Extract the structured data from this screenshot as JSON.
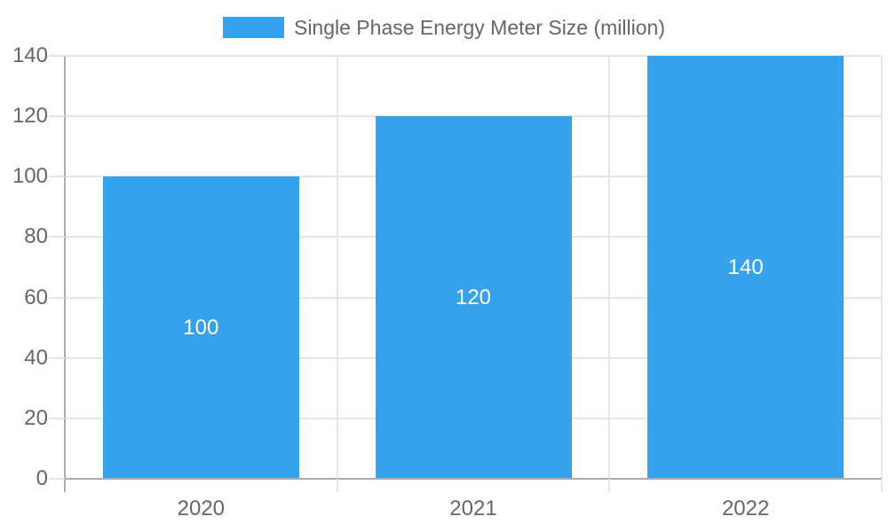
{
  "legend": {
    "label": "Single Phase Energy Meter Size (million)"
  },
  "chart_data": {
    "type": "bar",
    "title": "Single Phase Energy Meter Size (million)",
    "series": [
      {
        "name": "Single Phase Energy Meter Size (million)",
        "values": [
          100,
          120,
          140
        ]
      }
    ],
    "categories": [
      "2020",
      "2021",
      "2022"
    ],
    "data_labels": [
      "100",
      "120",
      "140"
    ],
    "xlabel": "",
    "ylabel": "",
    "ylim": [
      0,
      140
    ],
    "yticks": [
      0,
      20,
      40,
      60,
      80,
      100,
      120,
      140
    ],
    "grid": true,
    "legend_position": "top",
    "colors": {
      "bar": "#36A2EB",
      "bar_label": "#FFFFFF",
      "grid": "#E6E6E6",
      "axis": "#ABABAB",
      "text": "#666666"
    }
  }
}
